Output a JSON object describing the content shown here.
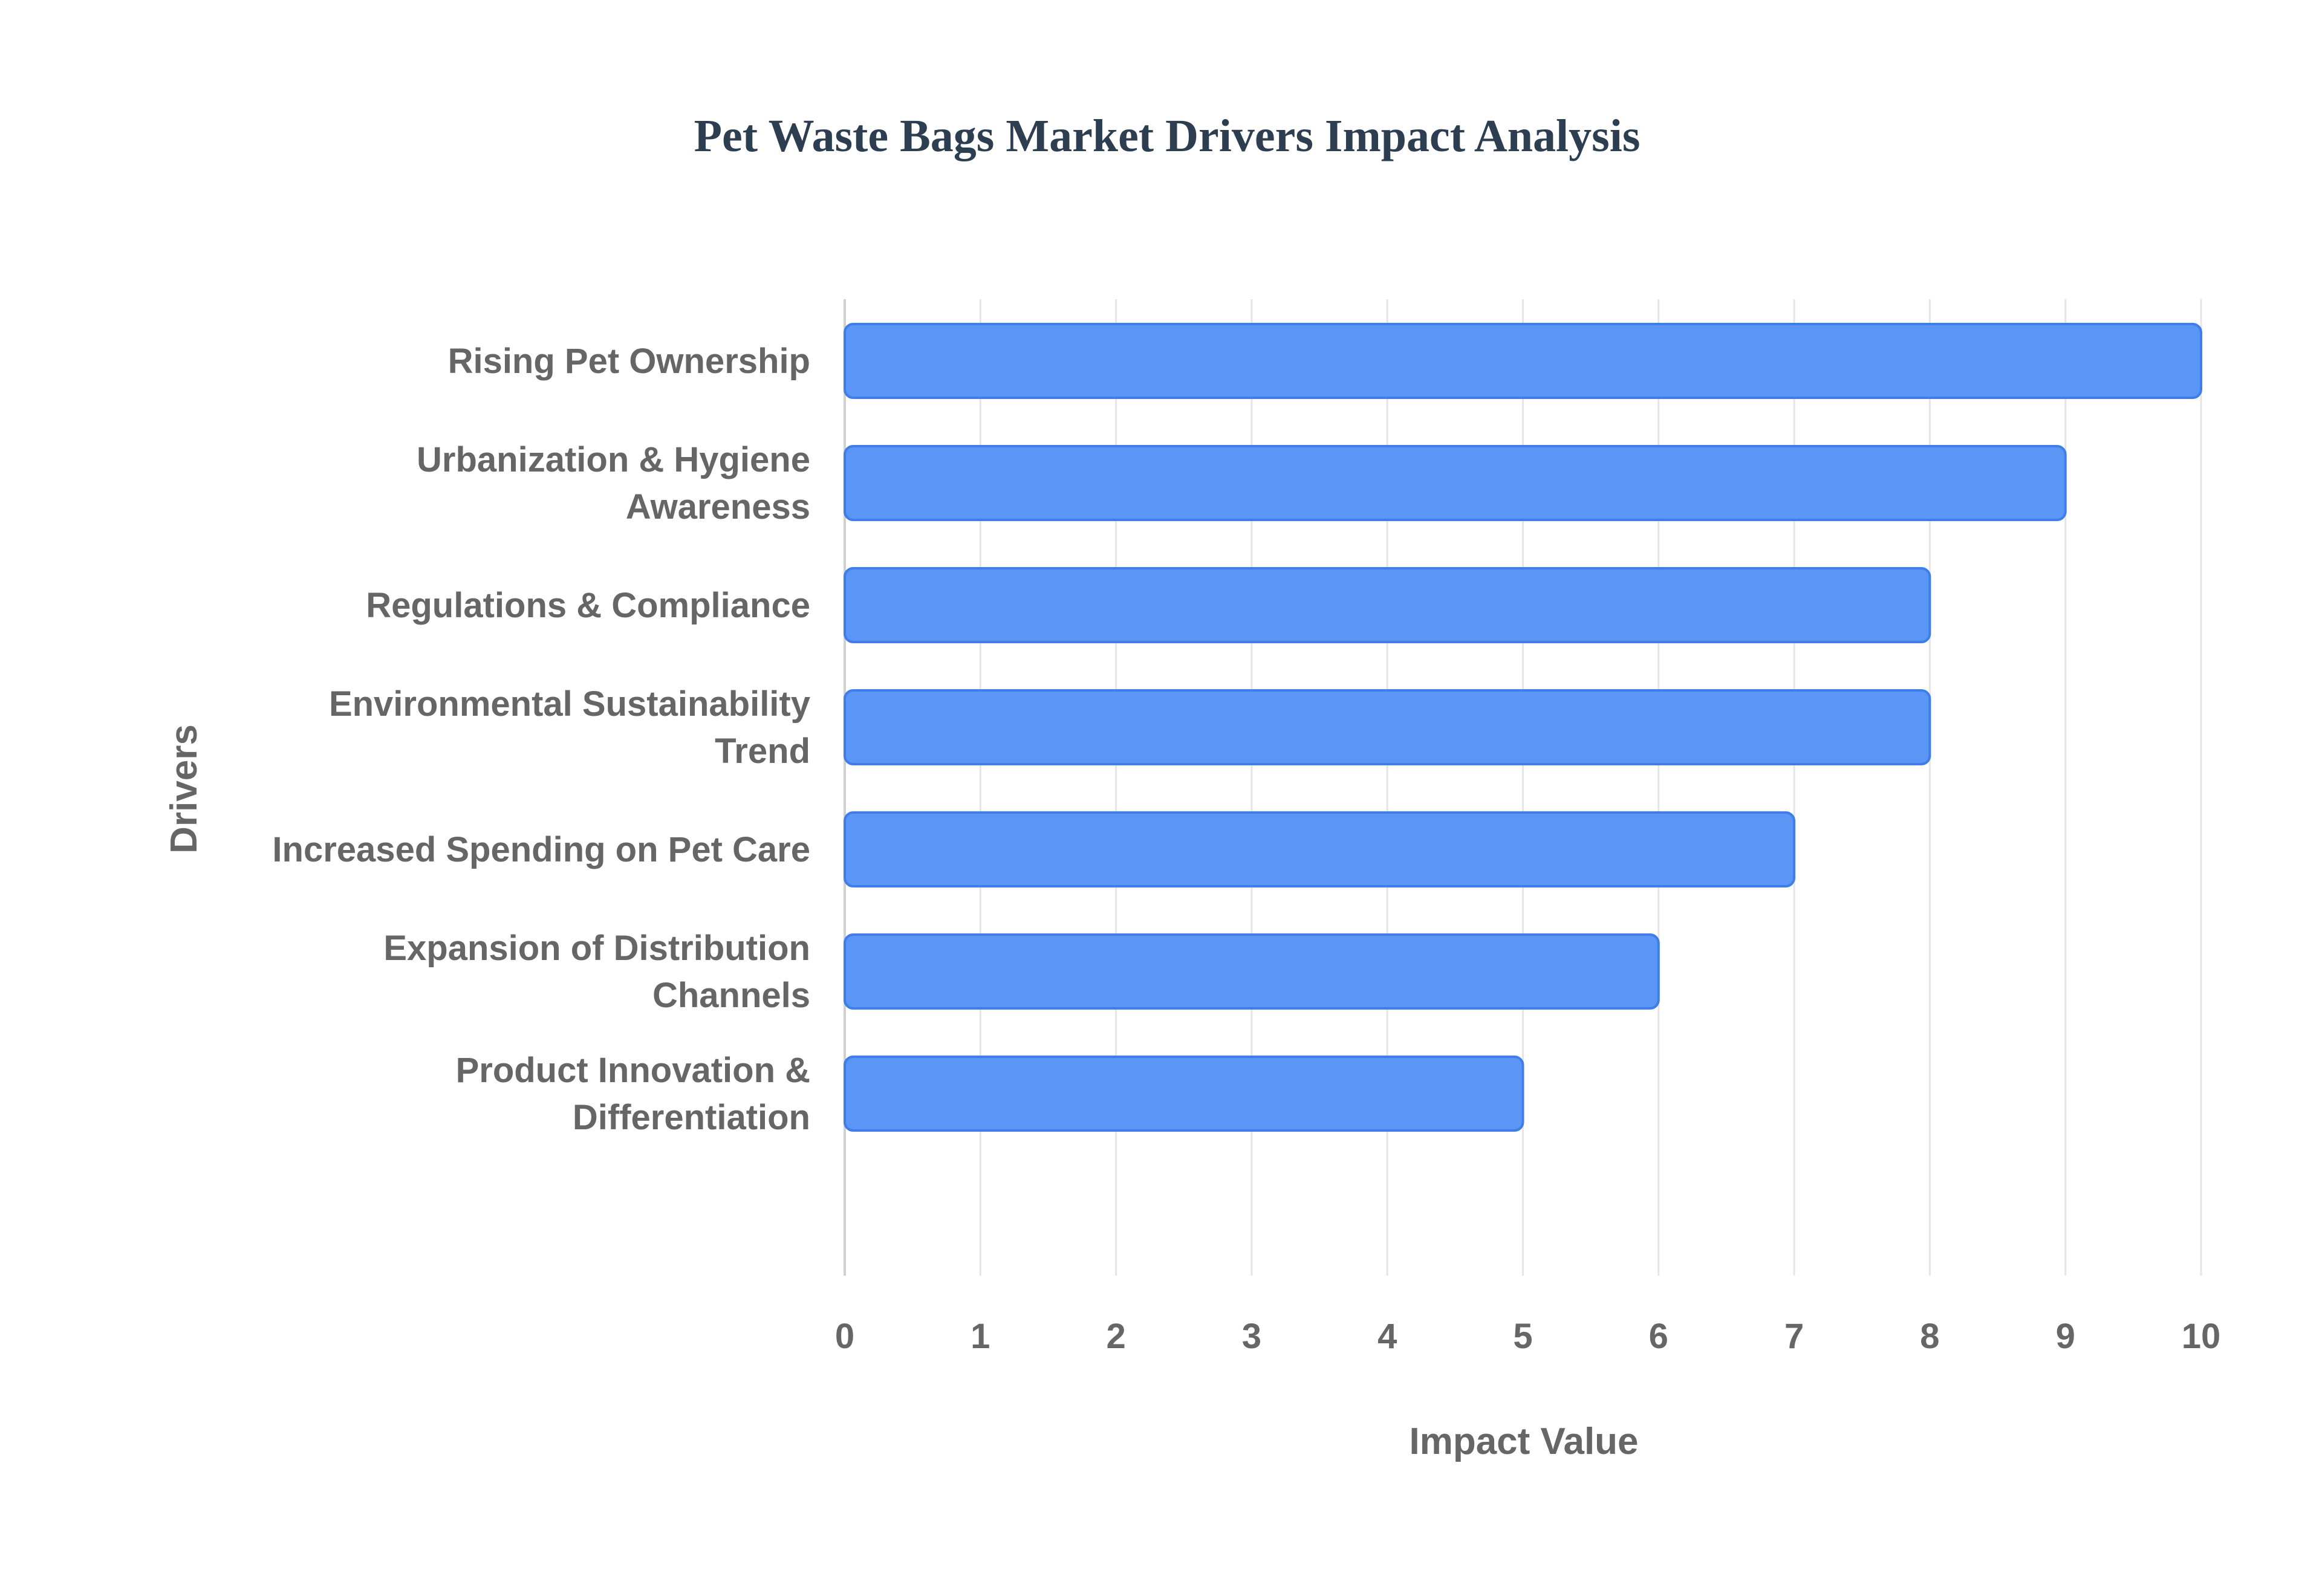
{
  "chart_data": {
    "type": "bar",
    "orientation": "horizontal",
    "title": "Pet Waste Bags Market Drivers Impact Analysis",
    "xlabel": "Impact Value",
    "ylabel": "Drivers",
    "xlim": [
      0,
      10
    ],
    "x_ticks": [
      0,
      1,
      2,
      3,
      4,
      5,
      6,
      7,
      8,
      9,
      10
    ],
    "grid": true,
    "categories": [
      {
        "lines": [
          "Rising Pet Ownership"
        ]
      },
      {
        "lines": [
          "Urbanization & Hygiene",
          "Awareness"
        ]
      },
      {
        "lines": [
          "Regulations & Compliance"
        ]
      },
      {
        "lines": [
          "Environmental Sustainability",
          "Trend"
        ]
      },
      {
        "lines": [
          "Increased Spending on Pet Care"
        ]
      },
      {
        "lines": [
          "Expansion of Distribution",
          "Channels"
        ]
      },
      {
        "lines": [
          "Product Innovation &",
          "Differentiation"
        ]
      }
    ],
    "values": [
      10,
      9,
      8,
      8,
      7,
      6,
      5
    ],
    "colors": {
      "bar_fill": "#5b95f5",
      "bar_stroke": "#3f7de8",
      "grid": "#e5e5e5",
      "axis": "#d0d0d0"
    }
  }
}
